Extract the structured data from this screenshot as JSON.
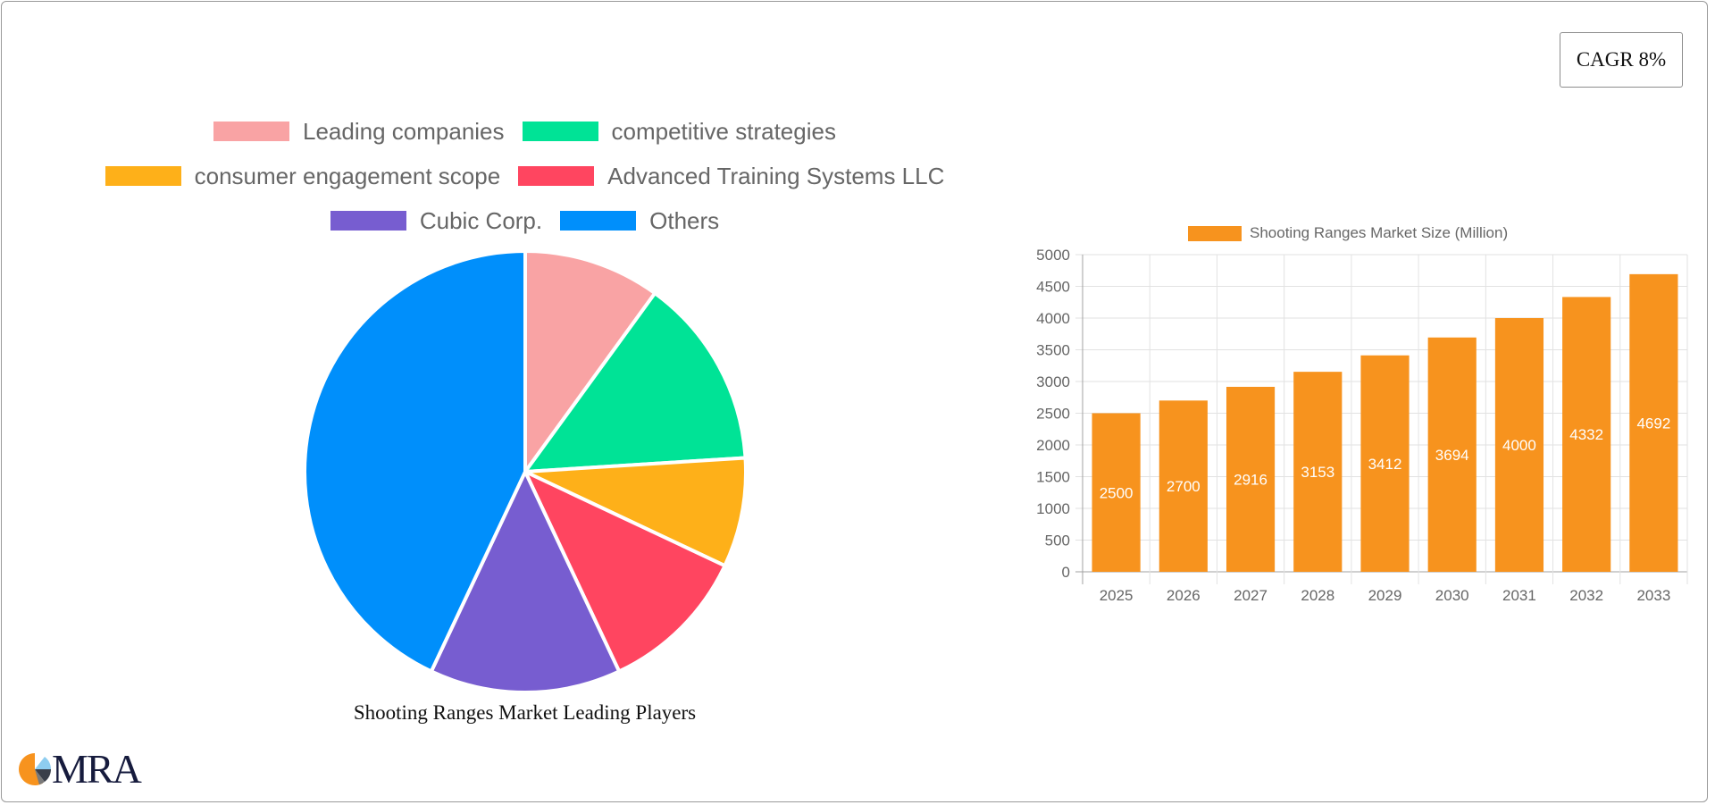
{
  "cagr_badge": {
    "label": "CAGR 8%"
  },
  "pie_chart": {
    "caption": "Shooting Ranges Market Leading Players",
    "legend_rows": [
      [
        0,
        1
      ],
      [
        2,
        3
      ],
      [
        4,
        5
      ]
    ]
  },
  "bar_chart": {
    "legend_label": "Shooting Ranges Market Size (Million)"
  },
  "logo": {
    "text": "MRA"
  },
  "chart_data": [
    {
      "type": "pie",
      "title": "Shooting Ranges Market Leading Players",
      "categories": [
        "Leading companies",
        "competitive strategies",
        "consumer engagement scope",
        "Advanced Training Systems LLC",
        "Cubic Corp.",
        "Others"
      ],
      "values": [
        10,
        14,
        8,
        11,
        14,
        43
      ],
      "colors": [
        "#f9a3a4",
        "#00e396",
        "#feb019",
        "#ff4560",
        "#775dd0",
        "#008ffb"
      ],
      "legend_position": "top"
    },
    {
      "type": "bar",
      "title": "",
      "series": [
        {
          "name": "Shooting Ranges Market Size (Million)",
          "values": [
            2500,
            2700,
            2916,
            3153,
            3412,
            3694,
            4000,
            4332,
            4692
          ],
          "color": "#f7931e"
        }
      ],
      "categories": [
        "2025",
        "2026",
        "2027",
        "2028",
        "2029",
        "2030",
        "2031",
        "2032",
        "2033"
      ],
      "xlabel": "",
      "ylabel": "",
      "ylim": [
        0,
        5000
      ],
      "yticks": [
        0,
        500,
        1000,
        1500,
        2000,
        2500,
        3000,
        3500,
        4000,
        4500,
        5000
      ],
      "grid": true,
      "data_labels": true,
      "legend_position": "top"
    }
  ]
}
